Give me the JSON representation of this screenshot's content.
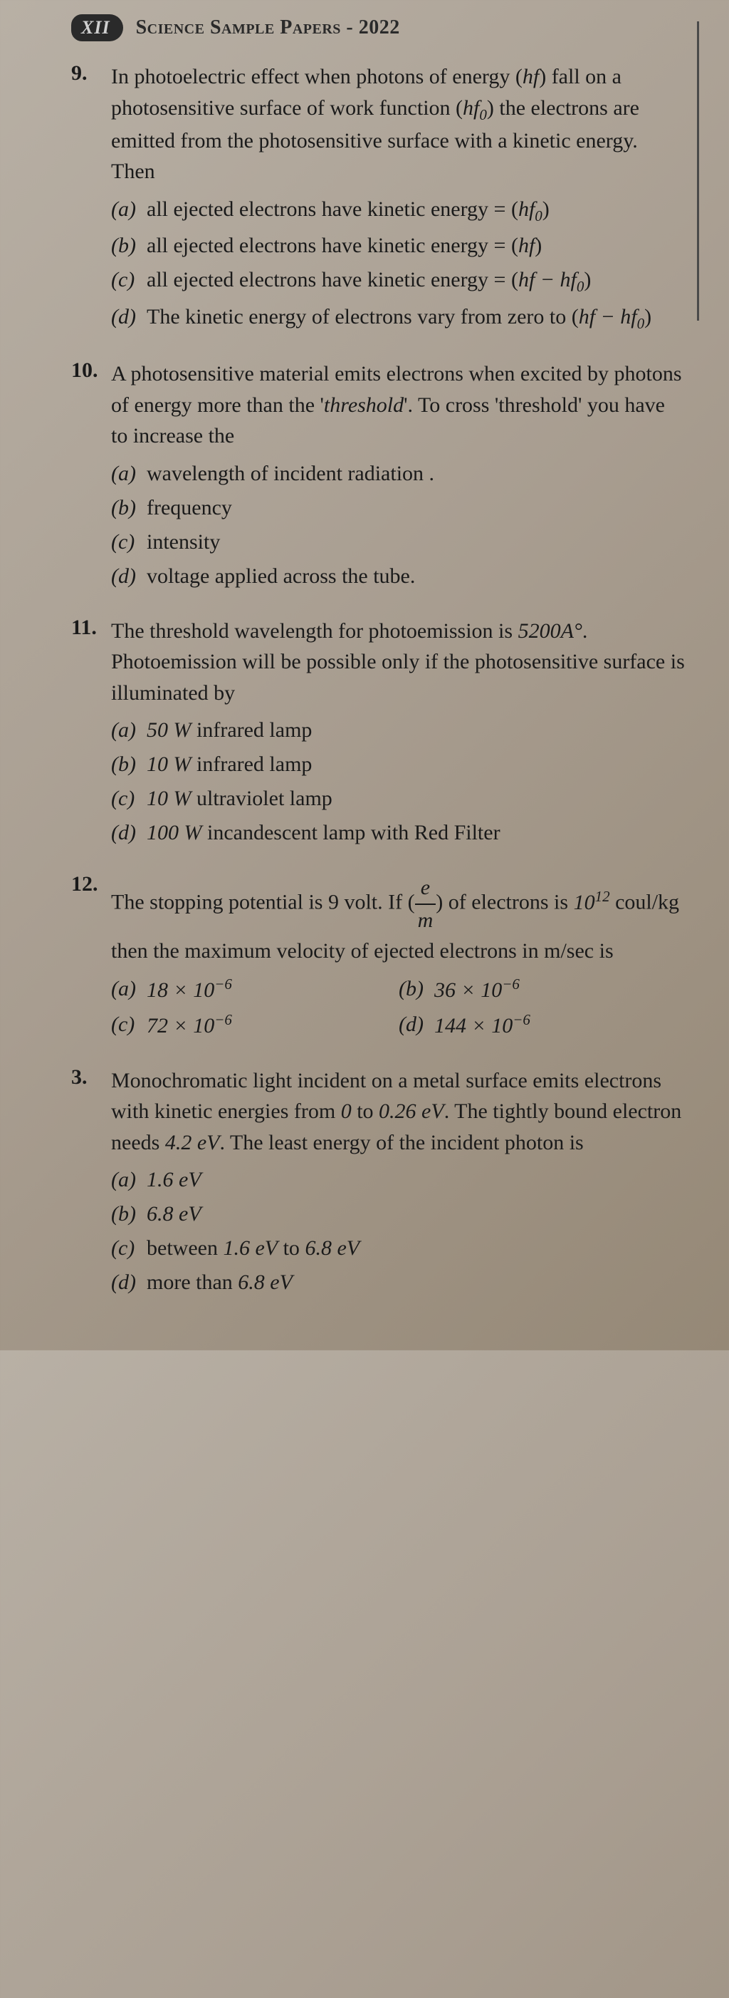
{
  "header": {
    "badge": "XII",
    "title": "Science Sample Papers - 2022"
  },
  "questions": [
    {
      "num": "9.",
      "stem_html": "In photoelectric effect when photons of energy (<span class='italic'>hf</span>) fall on a photosensitive surface of work function (<span class='italic'>hf<sub>0</sub></span>) the electrons are emitted from the photosensitive surface with a kinetic energy. Then",
      "options": [
        {
          "label": "(a)",
          "text_html": "all ejected electrons have kinetic energy = (<span class='italic'>hf<sub>0</sub></span>)"
        },
        {
          "label": "(b)",
          "text_html": "all ejected electrons have kinetic energy = (<span class='italic'>hf</span>)"
        },
        {
          "label": "(c)",
          "text_html": "all ejected electrons have kinetic energy = (<span class='italic'>hf − hf<sub>0</sub></span>)"
        },
        {
          "label": "(d)",
          "text_html": "The kinetic energy of electrons vary from zero to (<span class='italic'>hf − hf<sub>0</sub></span>)"
        }
      ]
    },
    {
      "num": "10.",
      "stem_html": "A photosensitive material emits electrons when excited by photons of energy more than the '<span class='italic'>threshold</span>'. To cross 'threshold' you have to increase the",
      "options": [
        {
          "label": "(a)",
          "text_html": "wavelength of incident radiation ."
        },
        {
          "label": "(b)",
          "text_html": "frequency"
        },
        {
          "label": "(c)",
          "text_html": "intensity"
        },
        {
          "label": "(d)",
          "text_html": "voltage applied across the tube."
        }
      ]
    },
    {
      "num": "11.",
      "stem_html": "The threshold wavelength for photoemission is <span class='italic'>5200A°</span>. Photoemission will be possible only if the photosensitive surface is illuminated by",
      "options": [
        {
          "label": "(a)",
          "text_html": "<span class='italic'>50 W</span> infrared lamp"
        },
        {
          "label": "(b)",
          "text_html": "<span class='italic'>10 W</span> infrared lamp"
        },
        {
          "label": "(c)",
          "text_html": "<span class='italic'>10 W</span> ultraviolet lamp"
        },
        {
          "label": "(d)",
          "text_html": "<span class='italic'>100 W</span> incandescent lamp with Red Filter"
        }
      ]
    },
    {
      "num": "12.",
      "stem_html": "The stopping potential is 9 volt. If (<span class='italic' style='display:inline-block;vertical-align:middle;text-align:center'><span style='display:block;border-bottom:2px solid #1a1a1a;padding:0 4px'>e</span><span style='display:block;padding:0 4px'>m</span></span>) of electrons is <span class='italic'>10<sup>12</sup></span> coul/kg then the maximum velocity of ejected electrons in m/sec is",
      "options_row": true,
      "options": [
        {
          "label": "(a)",
          "text_html": "<span class='italic'>18 × 10<sup>−6</sup></span>"
        },
        {
          "label": "(b)",
          "text_html": "<span class='italic'>36 × 10<sup>−6</sup></span>"
        },
        {
          "label": "(c)",
          "text_html": "<span class='italic'>72 × 10<sup>−6</sup></span>"
        },
        {
          "label": "(d)",
          "text_html": "<span class='italic'>144 × 10<sup>−6</sup></span>"
        }
      ]
    },
    {
      "num": "3.",
      "stem_html": "Monochromatic light incident on a metal surface emits electrons with kinetic energies from <span class='italic'>0</span> to <span class='italic'>0.26 eV</span>. The tightly bound electron needs <span class='italic'>4.2 eV</span>. The least energy of the incident photon is",
      "options": [
        {
          "label": "(a)",
          "text_html": "<span class='italic'>1.6 eV</span>"
        },
        {
          "label": "(b)",
          "text_html": "<span class='italic'>6.8 eV</span>"
        },
        {
          "label": "(c)",
          "text_html": "between <span class='italic'>1.6 eV</span> to <span class='italic'>6.8 eV</span>"
        },
        {
          "label": "(d)",
          "text_html": "more than <span class='italic'>6.8 eV</span>"
        }
      ]
    }
  ]
}
